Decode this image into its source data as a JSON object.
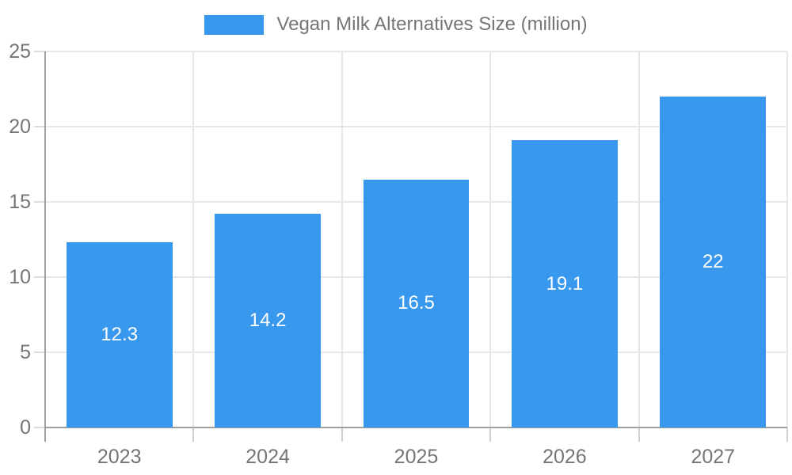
{
  "page": {
    "background": "#ffffff"
  },
  "legend": {
    "label": "Vegan Milk Alternatives Size (million)",
    "position": "top"
  },
  "colors": {
    "bar": "#3898ee",
    "axis_label": "#757575",
    "grid": "#e7e7e7",
    "axis_line": "#a0a0a0",
    "value_label": "#ffffff"
  },
  "chart_data": {
    "type": "bar",
    "title": "Vegan Milk Alternatives Size (million)",
    "categories": [
      "2023",
      "2024",
      "2025",
      "2026",
      "2027"
    ],
    "values": [
      12.3,
      14.2,
      16.5,
      19.1,
      22
    ],
    "value_labels": [
      "12.3",
      "14.2",
      "16.5",
      "19.1",
      "22"
    ],
    "series": [
      {
        "name": "Vegan Milk Alternatives Size (million)",
        "values": [
          12.3,
          14.2,
          16.5,
          19.1,
          22
        ]
      }
    ],
    "xlabel": "",
    "ylabel": "",
    "ylim": [
      0,
      25
    ],
    "yticks": [
      0,
      5,
      10,
      15,
      20,
      25
    ],
    "grid": true,
    "legend_position": "top",
    "bar_color": "#3898ee",
    "value_label_position": "inside-center"
  }
}
